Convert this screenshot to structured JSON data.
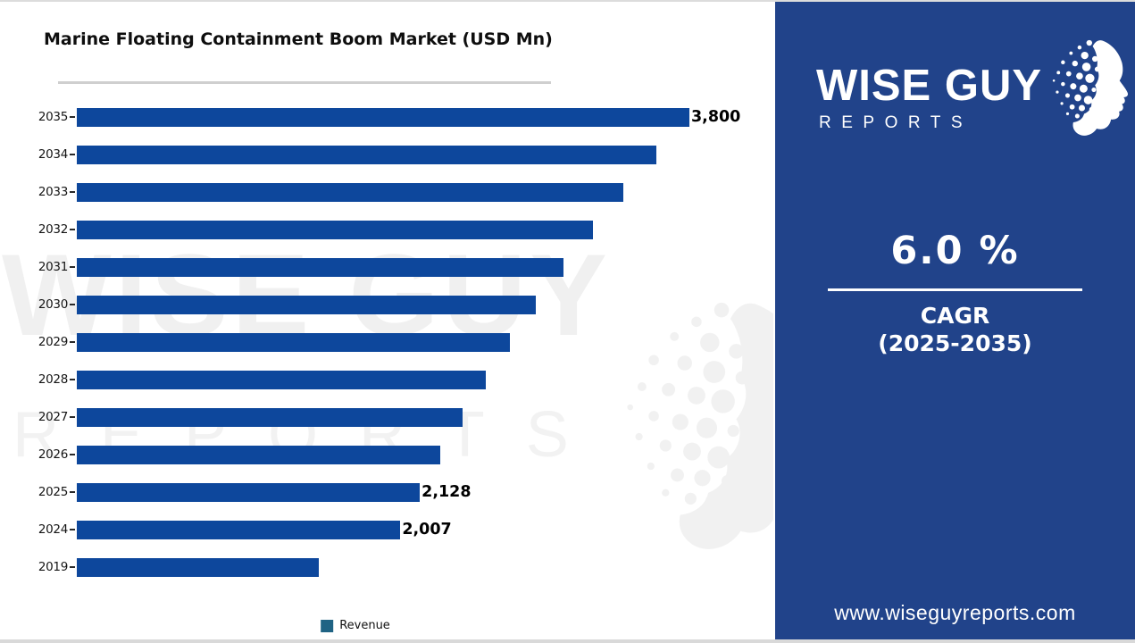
{
  "frame": {
    "border_color": "#d9d9d9"
  },
  "chart_data": {
    "type": "bar",
    "orientation": "horizontal",
    "title": "Marine Floating Containment Boom Market (USD Mn)",
    "categories": [
      "2035",
      "2034",
      "2033",
      "2032",
      "2031",
      "2030",
      "2029",
      "2028",
      "2027",
      "2026",
      "2025",
      "2024",
      "2019"
    ],
    "values": [
      3800,
      3596,
      3392,
      3200,
      3019,
      2848,
      2687,
      2535,
      2391,
      2256,
      2128,
      2007,
      1500
    ],
    "value_labels": [
      "3,800",
      "",
      "",
      "",
      "",
      "",
      "",
      "",
      "",
      "",
      "2,128",
      "2,007",
      ""
    ],
    "series": [
      {
        "name": "Revenue",
        "color": "#0d479c"
      }
    ],
    "xlabel": "",
    "ylabel": "",
    "xlim": [
      0,
      3800
    ],
    "grid": false,
    "legend_position": "bottom-center",
    "tick_color": "#2a2a2a"
  },
  "chart": {
    "title": "Marine Floating Containment Boom Market (USD Mn)",
    "legend_label": "Revenue",
    "legend_swatch_color": "#1f6384",
    "bar_color": "#0d479c"
  },
  "watermark": {
    "line1": "WISE GUY",
    "line2": "REPORTS"
  },
  "panel": {
    "background_color": "#21438a",
    "logo_line1": "WISE GUY",
    "logo_line2": "REPORTS",
    "cagr_value": "6.0 %",
    "cagr_label": "CAGR",
    "cagr_range": "(2025-2035)",
    "website": "www.wiseguyreports.com"
  }
}
